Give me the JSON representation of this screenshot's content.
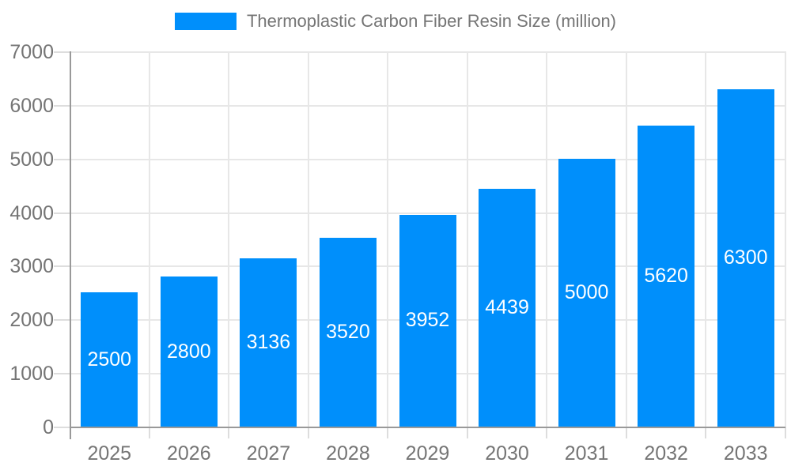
{
  "chart_data": {
    "type": "bar",
    "title": "Thermoplastic Carbon Fiber Resin Size (million)",
    "categories": [
      "2025",
      "2026",
      "2027",
      "2028",
      "2029",
      "2030",
      "2031",
      "2032",
      "2033"
    ],
    "values": [
      2500,
      2800,
      3136,
      3520,
      3952,
      4439,
      5000,
      5620,
      6300
    ],
    "series": [
      {
        "name": "Thermoplastic Carbon Fiber Resin Size (million)",
        "values": [
          2500,
          2800,
          3136,
          3520,
          3952,
          4439,
          5000,
          5620,
          6300
        ]
      }
    ],
    "xlabel": "",
    "ylabel": "",
    "ylim": [
      0,
      7000
    ],
    "yticks": [
      0,
      1000,
      2000,
      3000,
      4000,
      5000,
      6000,
      7000
    ],
    "grid": "both",
    "legend_position": "top-center",
    "value_labels": "inside-center",
    "colors": {
      "bar": "#008FFB",
      "value_label": "#ffffff",
      "axis_label": "#757575",
      "title": "#757575",
      "gridline": "#e7e7e7",
      "axis_line": "#999999",
      "tick": "#dddddd"
    }
  }
}
